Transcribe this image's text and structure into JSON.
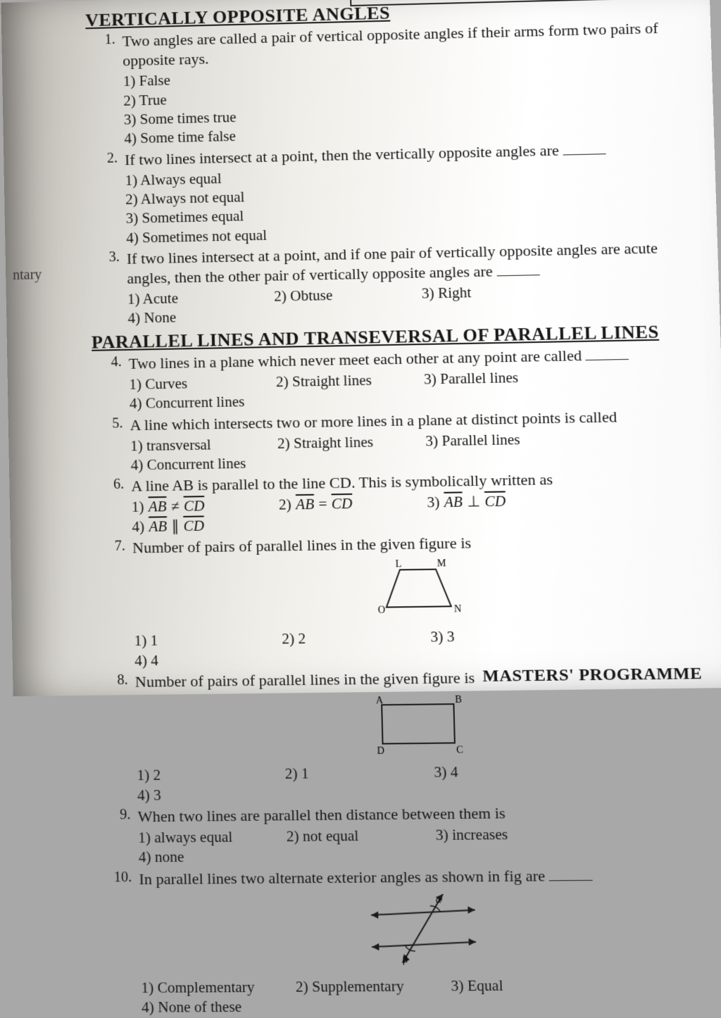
{
  "side_note": "ntary",
  "footer_text": "MASTERS' PROGRAMME",
  "sections": [
    {
      "title": "VERTICALLY OPPOSITE ANGLES",
      "questions": [
        {
          "num": "1.",
          "text_a": "Two angles are called a pair of vertical opposite angles if their arms form two pairs of opposite rays.",
          "layout": "2col",
          "opts": [
            "1) False",
            "2) True",
            "3) Some times true",
            "4) Some time false"
          ]
        },
        {
          "num": "2.",
          "text_a": "If two lines intersect at a point, then the vertically opposite angles are ",
          "blank": true,
          "layout": "2col",
          "opts": [
            "1) Always equal",
            "2) Always not equal",
            "3) Sometimes equal",
            "4) Sometimes not equal"
          ]
        },
        {
          "num": "3.",
          "text_a": "If two lines intersect at a point, and if one pair of vertically opposite angles are acute angles, then the other pair of vertically opposite angles are ",
          "blank": true,
          "layout": "4col",
          "opts": [
            "1) Acute",
            "2) Obtuse",
            "3) Right",
            "4) None"
          ]
        }
      ]
    },
    {
      "title": "PARALLEL LINES AND TRANSEVERSAL OF PARALLEL LINES",
      "questions": [
        {
          "num": "4.",
          "text_a": "Two lines in a plane which never meet each other at any point are called ",
          "blank": true,
          "layout": "4col",
          "opts": [
            "1) Curves",
            "2) Straight lines",
            "3) Parallel lines",
            "4) Concurrent lines"
          ]
        },
        {
          "num": "5.",
          "text_a": "A line which intersects two or more lines in a plane at distinct points is called",
          "layout": "4col",
          "opts": [
            "1) transversal",
            "2) Straight lines",
            "3) Parallel lines",
            "4) Concurrent lines"
          ]
        },
        {
          "num": "6.",
          "text_a": "A line AB is parallel to the line CD. This is symbolically written as",
          "layout": "4col-math",
          "math_opts": [
            {
              "n": "1)",
              "a": "AB",
              "rel": "≠",
              "b": "CD"
            },
            {
              "n": "2)",
              "a": "AB",
              "rel": "=",
              "b": "CD"
            },
            {
              "n": "3)",
              "a": "AB",
              "rel": "⊥",
              "b": "CD"
            },
            {
              "n": "4)",
              "a": "AB",
              "rel": "∥",
              "b": "CD"
            }
          ]
        },
        {
          "num": "7.",
          "text_a": "Number of pairs of parallel lines in the given figure is",
          "figure": "trapezium",
          "fig": {
            "labels": {
              "tl": "L",
              "tr": "M",
              "br": "N",
              "bl": "O"
            },
            "stroke": "#1c1c1c"
          },
          "layout": "4col",
          "opts": [
            "1) 1",
            "2) 2",
            "3) 3",
            "4) 4"
          ]
        },
        {
          "num": "8.",
          "text_a": "Number of pairs of parallel lines in the given figure is",
          "figure": "rectangle",
          "fig": {
            "labels": {
              "tl": "A",
              "tr": "B",
              "br": "C",
              "bl": "D"
            },
            "stroke": "#1c1c1c"
          },
          "layout": "4col",
          "opts": [
            "1) 2",
            "2) 1",
            "3) 4",
            "4) 3"
          ]
        },
        {
          "num": "9.",
          "text_a": "When two lines are parallel then distance between them is",
          "layout": "4col",
          "opts": [
            "1) always equal",
            "2) not equal",
            "3) increases",
            "4) none"
          ]
        },
        {
          "num": "10.",
          "text_a": "In parallel lines two alternate exterior angles as shown in fig are ",
          "blank": true,
          "figure": "transversal",
          "fig": {
            "a_label": "α",
            "b_label": "β",
            "stroke": "#1c1c1c"
          },
          "layout": "4col-wide",
          "opts": [
            "1) Complementary",
            "2) Supplementary",
            "3) Equal",
            "4) None of these"
          ]
        }
      ]
    }
  ]
}
